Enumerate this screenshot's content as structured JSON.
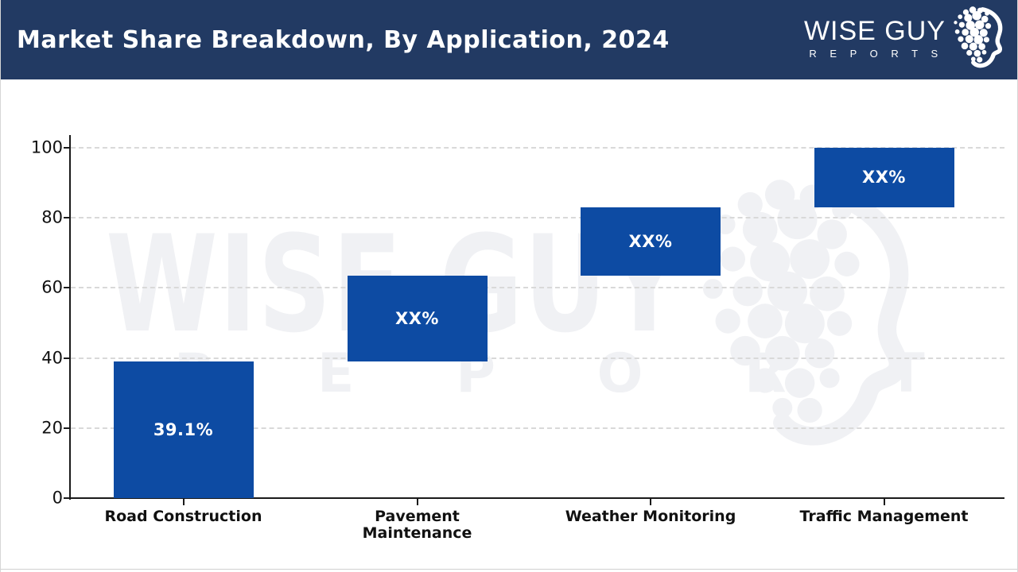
{
  "header": {
    "title": "Market Share Breakdown, By Application, 2024",
    "background_color": "#223a63",
    "logo": {
      "name": "WISE GUY",
      "sub": "R E P O R T S",
      "head_icon": "dotted-head-profile"
    }
  },
  "watermark": {
    "text": "WISE GUY",
    "sub": "R E P O R T S",
    "head_icon": "dotted-head-profile",
    "color": "#f0f1f4"
  },
  "chart_data": {
    "type": "bar",
    "subtype": "waterfall",
    "title": "Market Share Breakdown, By Application, 2024",
    "categories": [
      "Road Construction",
      "Pavement\nMaintenance",
      "Weather Monitoring",
      "Traffic Management"
    ],
    "segments": [
      {
        "category": "Road Construction",
        "start": 0,
        "end": 39.1,
        "label": "39.1%"
      },
      {
        "category": "Pavement Maintenance",
        "start": 39.1,
        "end": 63.5,
        "label": "XX%"
      },
      {
        "category": "Weather Monitoring",
        "start": 63.5,
        "end": 83.0,
        "label": "XX%"
      },
      {
        "category": "Traffic Management",
        "start": 83.0,
        "end": 100.0,
        "label": "XX%"
      }
    ],
    "xlabel": "",
    "ylabel": "",
    "y_ticks": [
      0,
      20,
      40,
      60,
      80,
      100
    ],
    "ylim": [
      0,
      103.6
    ],
    "grid": {
      "horizontal": true,
      "style": "dashed",
      "color": "#d9d9d9"
    },
    "legend": "none",
    "bar_color": "#0d4ba3",
    "bar_label_color": "#ffffff",
    "axis_color": "#1a1a1a"
  }
}
